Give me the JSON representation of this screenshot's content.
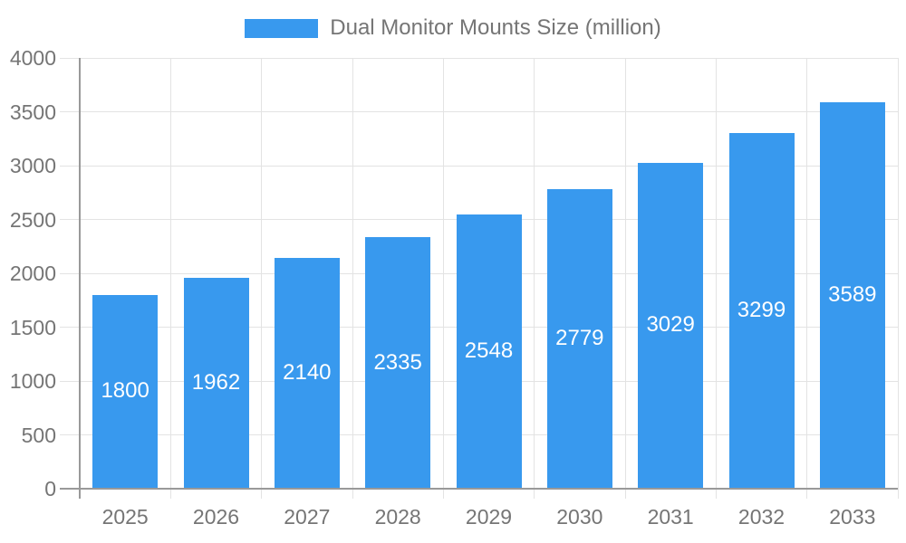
{
  "chart_data": {
    "type": "bar",
    "legend": "Dual Monitor Mounts Size (million)",
    "categories": [
      "2025",
      "2026",
      "2027",
      "2028",
      "2029",
      "2030",
      "2031",
      "2032",
      "2033"
    ],
    "values": [
      1800,
      1962,
      2140,
      2335,
      2548,
      2779,
      3029,
      3299,
      3589
    ],
    "value_labels": [
      "1800",
      "1962",
      "2140",
      "2335",
      "2548",
      "2779",
      "3029",
      "3299",
      "3589"
    ],
    "y_ticks": [
      "0",
      "500",
      "1000",
      "1500",
      "2000",
      "2500",
      "3000",
      "3500",
      "4000"
    ],
    "ylim": [
      0,
      4000
    ],
    "ytick_step": 500,
    "grid": true,
    "legend_position": "top",
    "value_label_position": "inside-center",
    "colors": {
      "bar": "#3899EE",
      "grid": "#e3e3e3",
      "axis": "#999999",
      "tick_label": "#757575",
      "legend_text": "#757575",
      "value_label": "#ffffff",
      "background": "#ffffff"
    }
  }
}
